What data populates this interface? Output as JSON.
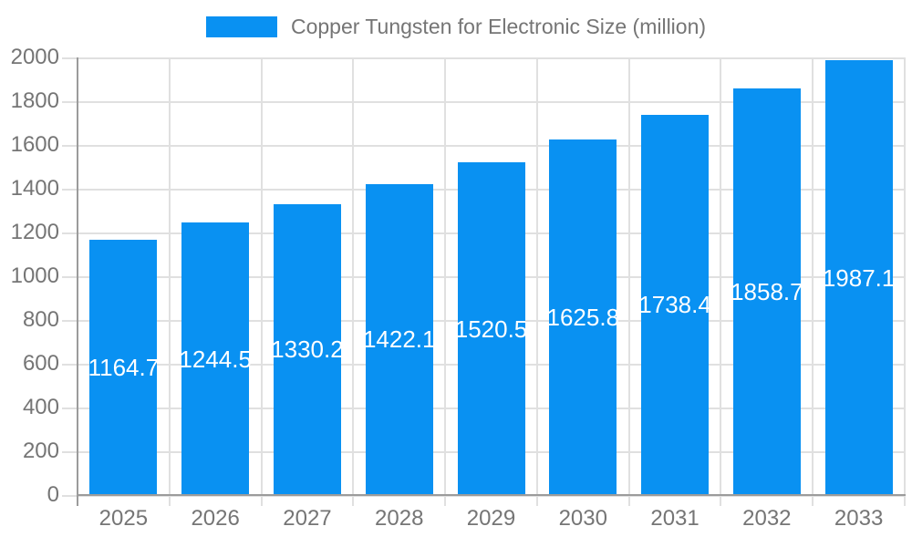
{
  "legend": {
    "label": "Copper Tungsten for Electronic Size (million)"
  },
  "colors": {
    "bar": "#0991f2",
    "grid": "#e0e0e0",
    "axis": "#9b9b9b",
    "text": "#757575",
    "value_label": "#ffffff",
    "background": "#ffffff"
  },
  "chart_data": {
    "type": "bar",
    "title": "Copper Tungsten for Electronic Size (million)",
    "series_name": "Copper Tungsten for Electronic Size (million)",
    "categories": [
      "2025",
      "2026",
      "2027",
      "2028",
      "2029",
      "2030",
      "2031",
      "2032",
      "2033"
    ],
    "values": [
      1164.7,
      1244.5,
      1330.2,
      1422.1,
      1520.5,
      1625.8,
      1738.4,
      1858.7,
      1987.1
    ],
    "value_labels_position": "inside-center",
    "xlabel": "",
    "ylabel": "",
    "ylim": [
      0,
      2000
    ],
    "ytick_step": 200,
    "yticks": [
      0,
      200,
      400,
      600,
      800,
      1000,
      1200,
      1400,
      1600,
      1800,
      2000
    ],
    "grid": "horizontal-and-vertical",
    "legend_position": "top-center"
  }
}
